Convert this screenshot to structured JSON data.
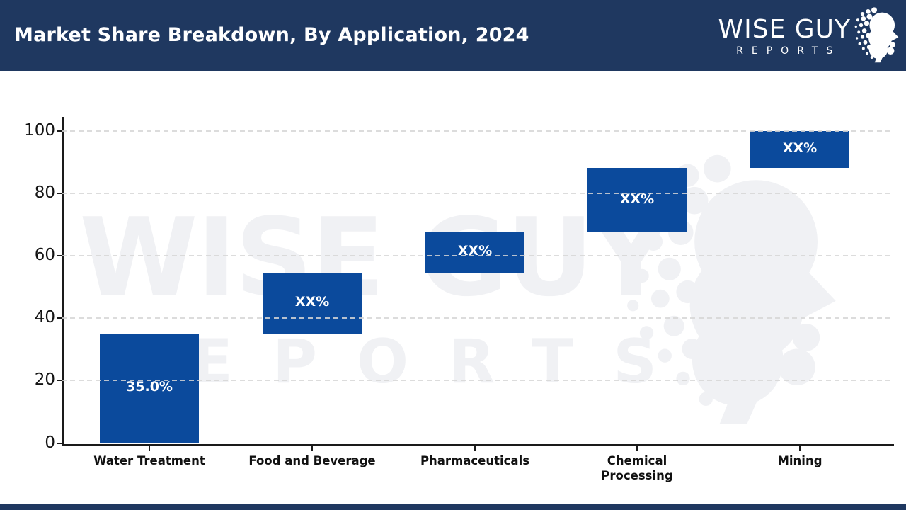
{
  "header": {
    "title": "Market Share Breakdown, By Application, 2024",
    "logo": {
      "line1": "WISE GUY",
      "line2": "REPORTS"
    }
  },
  "watermark": {
    "line1": "WISE GUY",
    "line2": "REPORTS"
  },
  "chart_data": {
    "type": "bar",
    "subtype": "waterfall",
    "title": "Market Share Breakdown, By Application, 2024",
    "categories": [
      "Water Treatment",
      "Food and Beverage",
      "Pharmaceuticals",
      "Chemical\nProcessing",
      "Mining"
    ],
    "segments": [
      {
        "category": "Water Treatment",
        "start": 0,
        "end": 35,
        "label": "35.0%"
      },
      {
        "category": "Food and Beverage",
        "start": 35,
        "end": 54.5,
        "label": "XX%"
      },
      {
        "category": "Pharmaceuticals",
        "start": 54.5,
        "end": 67.5,
        "label": "XX%"
      },
      {
        "category": "Chemical Processing",
        "start": 67.5,
        "end": 88,
        "label": "XX%"
      },
      {
        "category": "Mining",
        "start": 88,
        "end": 100,
        "label": "XX%"
      }
    ],
    "xlabel": "",
    "ylabel": "",
    "yticks": [
      0,
      20,
      40,
      60,
      80,
      100
    ],
    "ylim": [
      0,
      105
    ],
    "grid": "horizontal-dashed",
    "legend": "none",
    "bar_color": "#0b4a9c",
    "label_color": "#ffffff"
  },
  "colors": {
    "header_bg": "#1f3860",
    "footer_bg": "#1f3860",
    "bar": "#0b4a9c",
    "gridline": "#d6d6d6",
    "axis": "#1a1a1a",
    "watermark": "#f0f1f4"
  }
}
